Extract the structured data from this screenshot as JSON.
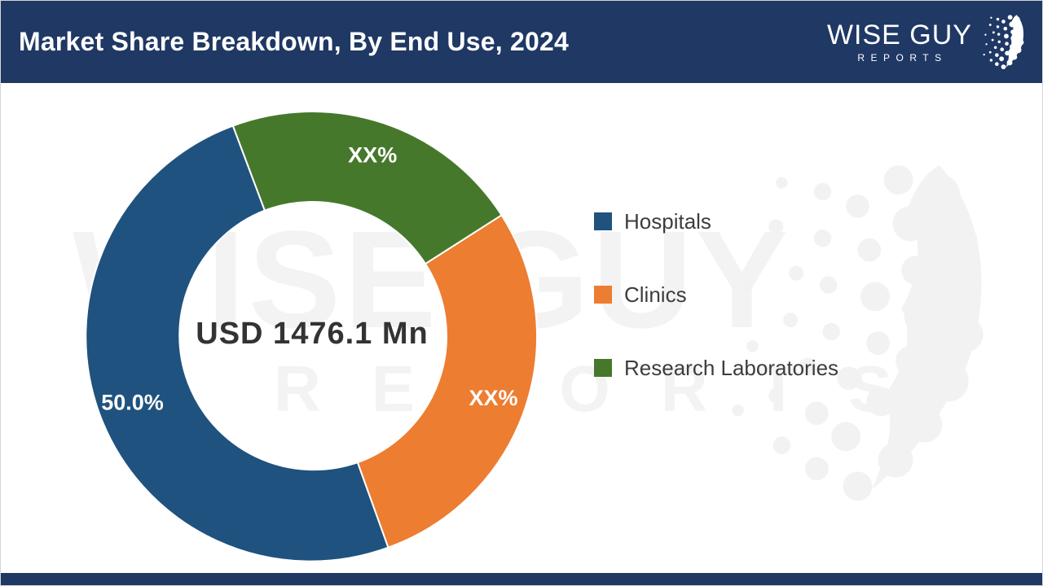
{
  "header": {
    "title": "Market Share Breakdown, By End Use, 2024",
    "bg_color": "#1F3864",
    "logo": {
      "wordmark": "WISE GUY",
      "subtext": "REPORTS"
    }
  },
  "chart_data": {
    "type": "pie",
    "subtype": "donut",
    "title": "Market Share Breakdown, By End Use, 2024",
    "center_label": "USD 1476.1 Mn",
    "inner_radius_ratio": 0.6,
    "legend_position": "right",
    "categories": [
      "Hospitals",
      "Clinics",
      "Research Laboratories"
    ],
    "values": [
      50.0,
      28.5,
      21.5
    ],
    "value_labels": [
      "50.0%",
      "XX%",
      "XX%"
    ],
    "colors": [
      "#1F527E",
      "#ED7D31",
      "#46782B"
    ],
    "segments": [
      {
        "name": "Hospitals",
        "label": "50.0%",
        "pct": 50.0,
        "color": "#1F527E",
        "start_angle": 160.2,
        "end_angle": 339.4
      },
      {
        "name": "Clinics",
        "label": "XX%",
        "pct": 28.5,
        "color": "#ED7D31",
        "start_angle": 57.4,
        "end_angle": 160.2
      },
      {
        "name": "Research Laboratories",
        "label": "XX%",
        "pct": 21.5,
        "color": "#46782B",
        "start_angle": -20.6,
        "end_angle": 57.4
      }
    ]
  },
  "legend": {
    "items": [
      {
        "label": "Hospitals",
        "color": "#1F527E"
      },
      {
        "label": "Clinics",
        "color": "#ED7D31"
      },
      {
        "label": "Research Laboratories",
        "color": "#46782B"
      }
    ]
  },
  "watermark": {
    "wordmark": "WISE GUY",
    "subtext": "REPORTS"
  },
  "footer": {
    "bg_color": "#1F3864"
  }
}
